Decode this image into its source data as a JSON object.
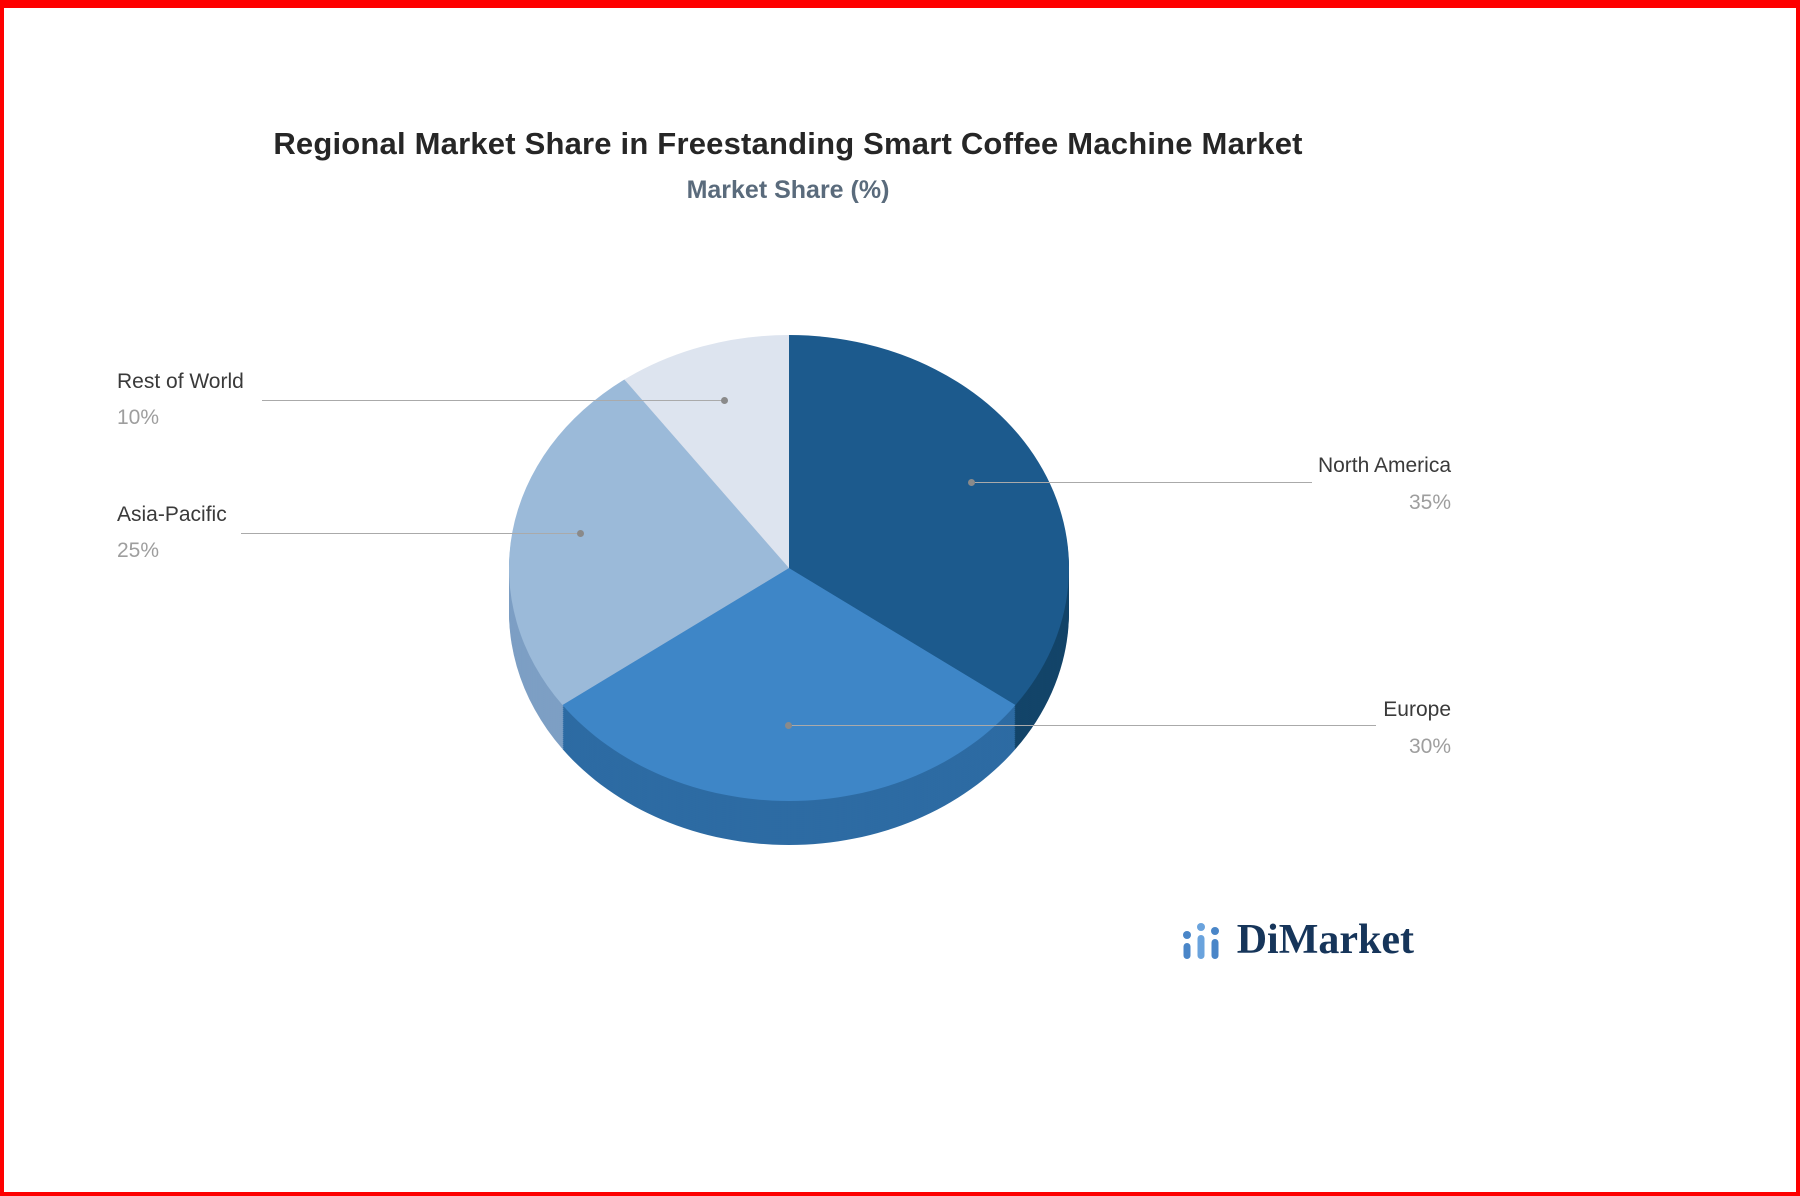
{
  "header": {
    "title": "Regional Market Share in Freestanding Smart Coffee Machine Market",
    "subtitle": "Market Share (%)"
  },
  "chart_data": {
    "type": "pie",
    "title": "Regional Market Share in Freestanding Smart Coffee Machine Market",
    "subtitle": "Market Share (%)",
    "unit": "%",
    "start_angle_deg": -90,
    "direction": "clockwise",
    "effect": "3d",
    "legend_position": "callout-labels",
    "slices": [
      {
        "label": "North America",
        "value": 35,
        "display": "35%",
        "color": "#1c5a8d",
        "side_color": "#134469"
      },
      {
        "label": "Europe",
        "value": 30,
        "display": "30%",
        "color": "#3e86c7",
        "side_color": "#2d6ba3"
      },
      {
        "label": "Asia-Pacific",
        "value": 25,
        "display": "25%",
        "color": "#9bbad9",
        "side_color": "#7d9fc4"
      },
      {
        "label": "Rest of World",
        "value": 10,
        "display": "10%",
        "color": "#dde4ef",
        "side_color": "#bcc9da"
      }
    ]
  },
  "branding": {
    "logo_text": "DiMarket",
    "logo_text_color": "#16355a",
    "logo_icon_color": "#4a86c8"
  }
}
